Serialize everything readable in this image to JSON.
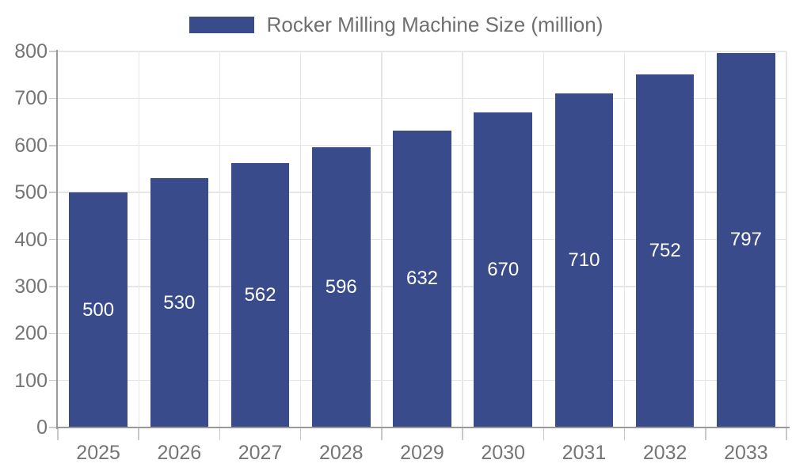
{
  "legend": {
    "label": "Rocker Milling Machine Size (million)"
  },
  "chart_data": {
    "type": "bar",
    "categories": [
      "2025",
      "2026",
      "2027",
      "2028",
      "2029",
      "2030",
      "2031",
      "2032",
      "2033"
    ],
    "values": [
      500,
      530,
      562,
      596,
      632,
      670,
      710,
      752,
      797
    ],
    "series_name": "Rocker Milling Machine Size (million)",
    "title": "",
    "xlabel": "",
    "ylabel": "",
    "ylim": [
      0,
      800
    ],
    "ytick_step": 100,
    "yticks": [
      0,
      100,
      200,
      300,
      400,
      500,
      600,
      700,
      800
    ],
    "grid": true,
    "legend_position": "top-center",
    "bar_color": "#3A4B8C",
    "bar_label_color": "#FFFFFF",
    "grid_color": "#E6E6E6",
    "axis_color": "#999999",
    "tick_color": "#C9C9C9",
    "tick_label_color": "#757575"
  }
}
